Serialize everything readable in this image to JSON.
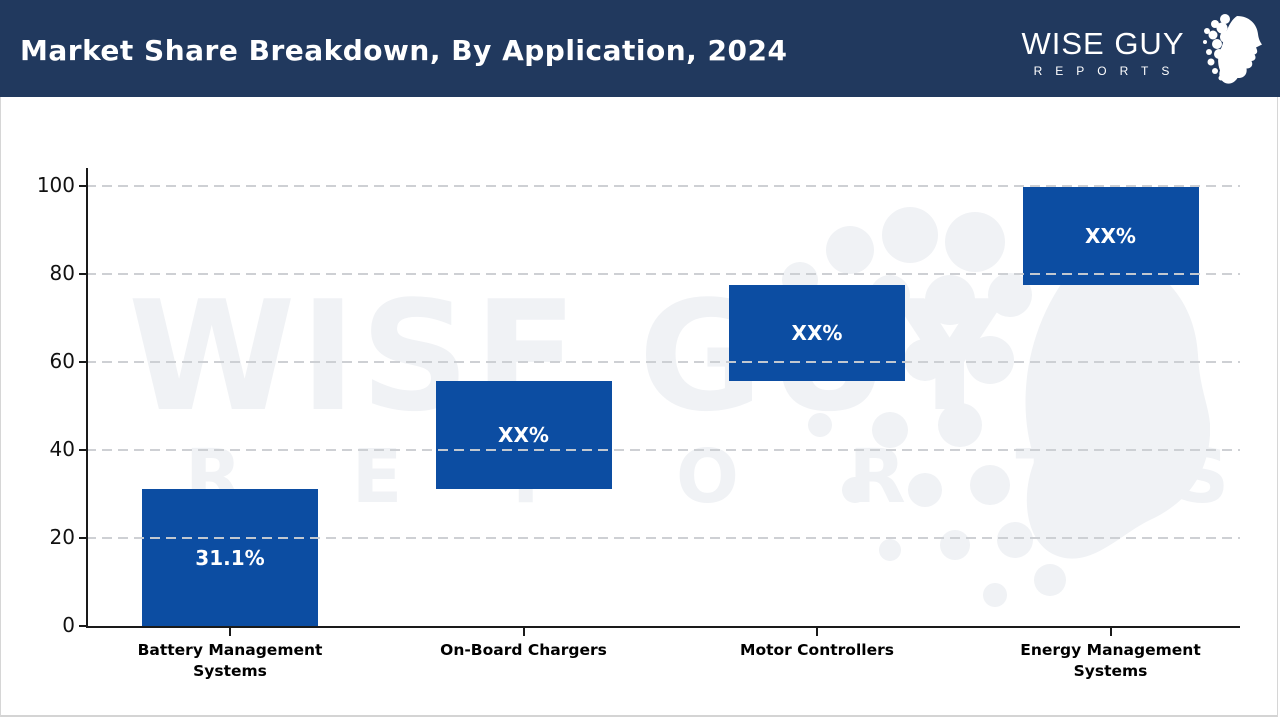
{
  "header": {
    "title": "Market Share Breakdown, By Application, 2024",
    "logo": {
      "line1": "WISE GUY",
      "line2": "REPORTS"
    }
  },
  "watermark": {
    "line1": "WISE GUY",
    "line2": "R E P O R T S"
  },
  "colors": {
    "header_bg": "#21395e",
    "bar": "#0c4da2",
    "bar_label": "#ffffff",
    "grid": "#cbced2",
    "watermark": "#f0f2f5",
    "axis": "#1a1a1a"
  },
  "chart_data": {
    "type": "bar",
    "subtype": "waterfall",
    "title": "Market Share Breakdown, By Application, 2024",
    "xlabel": "",
    "ylabel": "",
    "categories": [
      "Battery Management Systems",
      "On-Board Chargers",
      "Motor Controllers",
      "Energy Management Systems"
    ],
    "series": [
      {
        "name": "Market Share (%)",
        "segments": [
          {
            "start": 0,
            "end": 31.1,
            "label": "31.1%"
          },
          {
            "start": 31.1,
            "end": 55.7,
            "label": "XX%"
          },
          {
            "start": 55.7,
            "end": 77.5,
            "label": "XX%"
          },
          {
            "start": 77.5,
            "end": 99.8,
            "label": "XX%"
          }
        ]
      }
    ],
    "yticks": [
      0,
      20,
      40,
      60,
      80,
      100
    ],
    "ylim": [
      0,
      104
    ],
    "grid": "horizontal-dashed",
    "legend": "none"
  }
}
